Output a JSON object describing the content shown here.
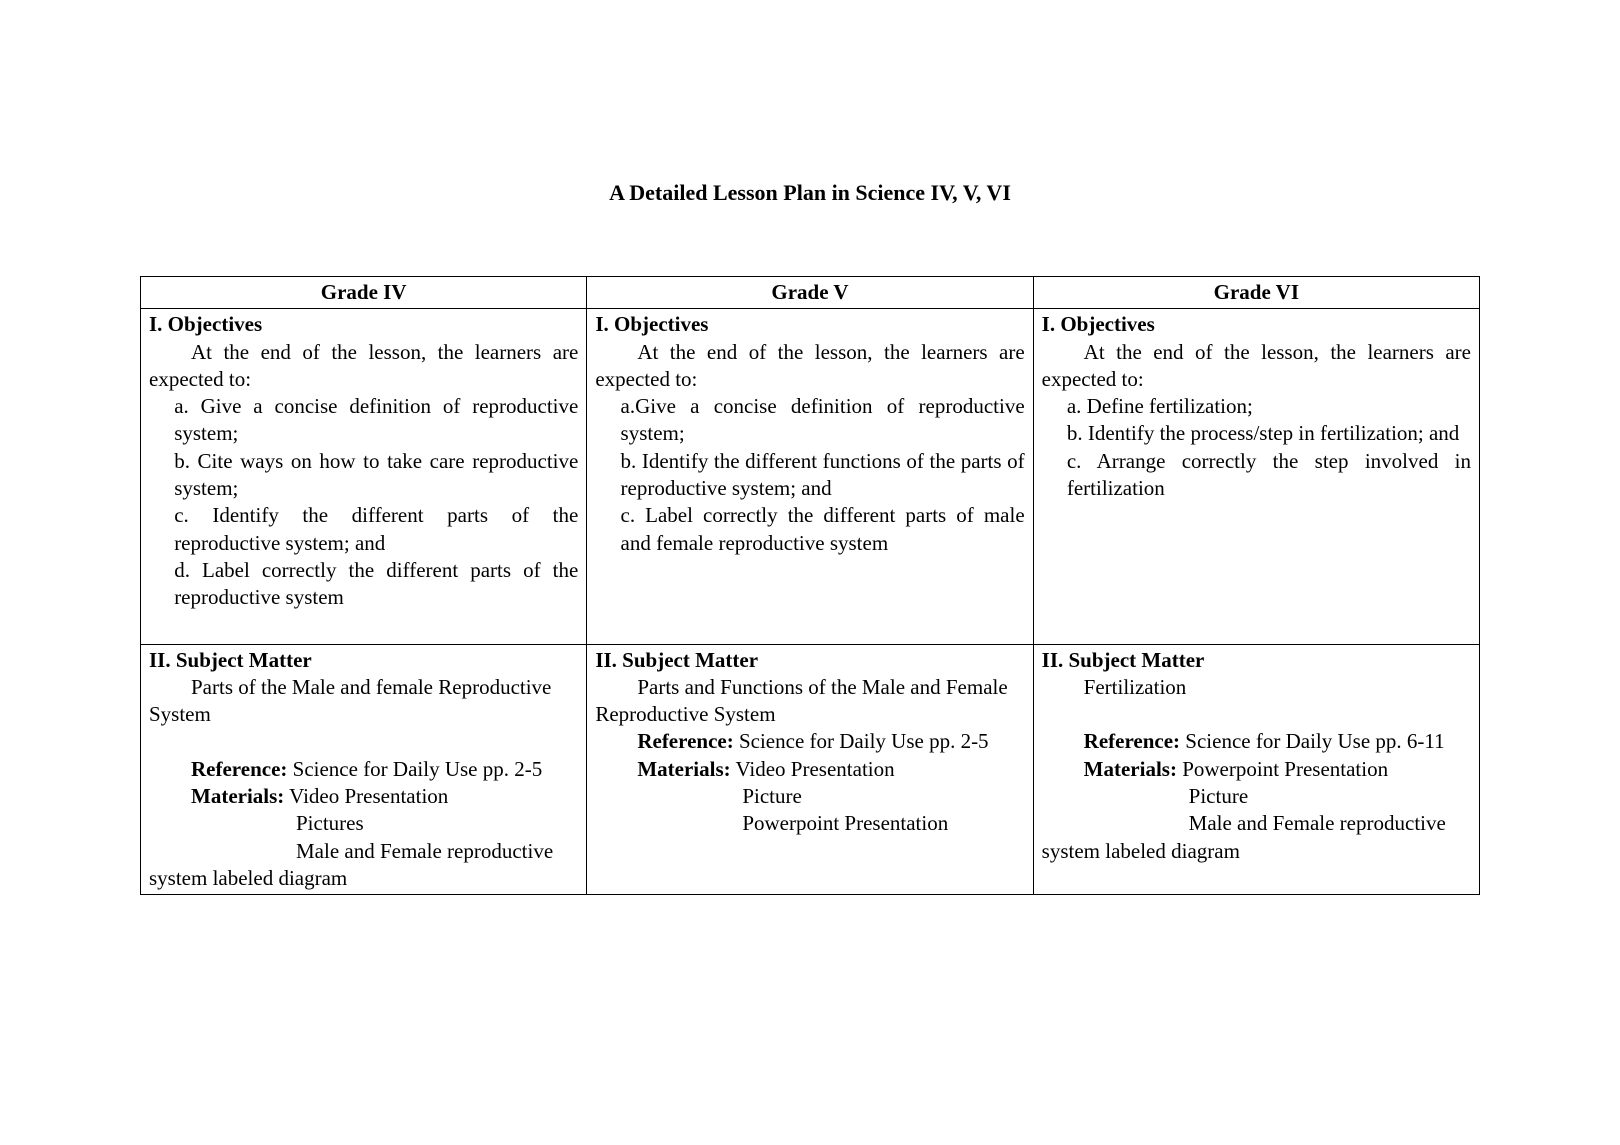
{
  "title": "A Detailed Lesson Plan in Science IV, V, VI",
  "headers": [
    "Grade IV",
    "Grade V",
    "Grade VI"
  ],
  "row1": {
    "g4": {
      "head": "I. Objectives",
      "intro": "At the end of the lesson, the learners are expected to:",
      "items": [
        "a. Give a concise definition of reproductive system;",
        "b. Cite ways on how to take care reproductive system;",
        "c. Identify the different parts of the reproductive system; and",
        "d. Label correctly the different parts of the reproductive system"
      ]
    },
    "g5": {
      "head": "I. Objectives",
      "intro": "At the end of the lesson, the learners are expected to:",
      "items": [
        "a.Give a concise definition of reproductive system;",
        "b. Identify the different functions of the parts of reproductive system; and",
        "c. Label correctly the different parts of male and female reproductive system"
      ]
    },
    "g6": {
      "head": "I. Objectives",
      "intro": "At the end of the lesson, the learners are expected to:",
      "items": [
        "a. Define fertilization;",
        "b. Identify the process/step in fertilization; and",
        "c. Arrange correctly the step involved in fertilization"
      ]
    }
  },
  "row2": {
    "g4": {
      "head": "II. Subject Matter",
      "topic": "Parts of the Male and female Reproductive System",
      "refLabel": "Reference:",
      "refText": " Science for Daily Use pp. 2-5",
      "matLabel": "Materials:",
      "matText": " Video Presentation",
      "matItems": [
        "Pictures",
        "Male and Female reproductive system labeled diagram"
      ]
    },
    "g5": {
      "head": "II. Subject Matter",
      "topic": "Parts and Functions of the Male and Female Reproductive System",
      "refLabel": "Reference:",
      "refText": " Science for Daily Use pp. 2-5",
      "matLabel": "Materials:",
      "matText": " Video Presentation",
      "matItems": [
        "Picture",
        "Powerpoint Presentation"
      ]
    },
    "g6": {
      "head": "II. Subject Matter",
      "topic": "Fertilization",
      "blank": " ",
      "refLabel": "Reference:",
      "refText": " Science for Daily Use pp. 6-11",
      "matLabel": "Materials:",
      "matText": " Powerpoint Presentation",
      "matItems": [
        "Picture",
        "Male and Female reproductive system labeled diagram"
      ]
    }
  }
}
